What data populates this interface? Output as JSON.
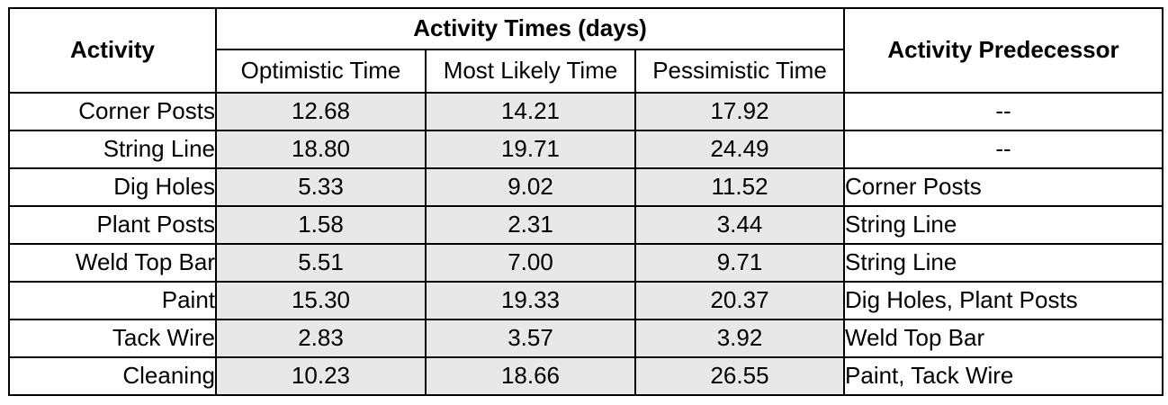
{
  "table": {
    "header": {
      "activity": "Activity",
      "activity_times_group": "Activity Times (days)",
      "optimistic": "Optimistic Time",
      "most_likely": "Most Likely Time",
      "pessimistic": "Pessimistic Time",
      "predecessor": "Activity Predecessor"
    },
    "rows": [
      {
        "activity": "Corner Posts",
        "optimistic": "12.68",
        "most_likely": "14.21",
        "pessimistic": "17.92",
        "predecessor": "--"
      },
      {
        "activity": "String Line",
        "optimistic": "18.80",
        "most_likely": "19.71",
        "pessimistic": "24.49",
        "predecessor": "--"
      },
      {
        "activity": "Dig Holes",
        "optimistic": "5.33",
        "most_likely": "9.02",
        "pessimistic": "11.52",
        "predecessor": "Corner Posts"
      },
      {
        "activity": "Plant Posts",
        "optimistic": "1.58",
        "most_likely": "2.31",
        "pessimistic": "3.44",
        "predecessor": "String Line"
      },
      {
        "activity": "Weld Top Bar",
        "optimistic": "5.51",
        "most_likely": "7.00",
        "pessimistic": "9.71",
        "predecessor": "String Line"
      },
      {
        "activity": "Paint",
        "optimistic": "15.30",
        "most_likely": "19.33",
        "pessimistic": "20.37",
        "predecessor": "Dig Holes, Plant Posts"
      },
      {
        "activity": "Tack Wire",
        "optimistic": "2.83",
        "most_likely": "3.57",
        "pessimistic": "3.92",
        "predecessor": "Weld Top Bar"
      },
      {
        "activity": "Cleaning",
        "optimistic": "10.23",
        "most_likely": "18.66",
        "pessimistic": "26.55",
        "predecessor": "Paint, Tack Wire"
      }
    ],
    "colors": {
      "shaded_cell": "#e8e8e8",
      "border": "#000000",
      "background": "#ffffff",
      "text": "#000000"
    }
  },
  "chart_data": {
    "type": "table",
    "title": "Activity Times (days)",
    "columns": [
      "Activity",
      "Optimistic Time",
      "Most Likely Time",
      "Pessimistic Time",
      "Activity Predecessor"
    ],
    "rows": [
      [
        "Corner Posts",
        12.68,
        14.21,
        17.92,
        "--"
      ],
      [
        "String Line",
        18.8,
        19.71,
        24.49,
        "--"
      ],
      [
        "Dig Holes",
        5.33,
        9.02,
        11.52,
        "Corner Posts"
      ],
      [
        "Plant Posts",
        1.58,
        2.31,
        3.44,
        "String Line"
      ],
      [
        "Weld Top Bar",
        5.51,
        7.0,
        9.71,
        "String Line"
      ],
      [
        "Paint",
        15.3,
        19.33,
        20.37,
        "Dig Holes, Plant Posts"
      ],
      [
        "Tack Wire",
        2.83,
        3.57,
        3.92,
        "Weld Top Bar"
      ],
      [
        "Cleaning",
        10.23,
        18.66,
        26.55,
        "Paint, Tack Wire"
      ]
    ]
  }
}
